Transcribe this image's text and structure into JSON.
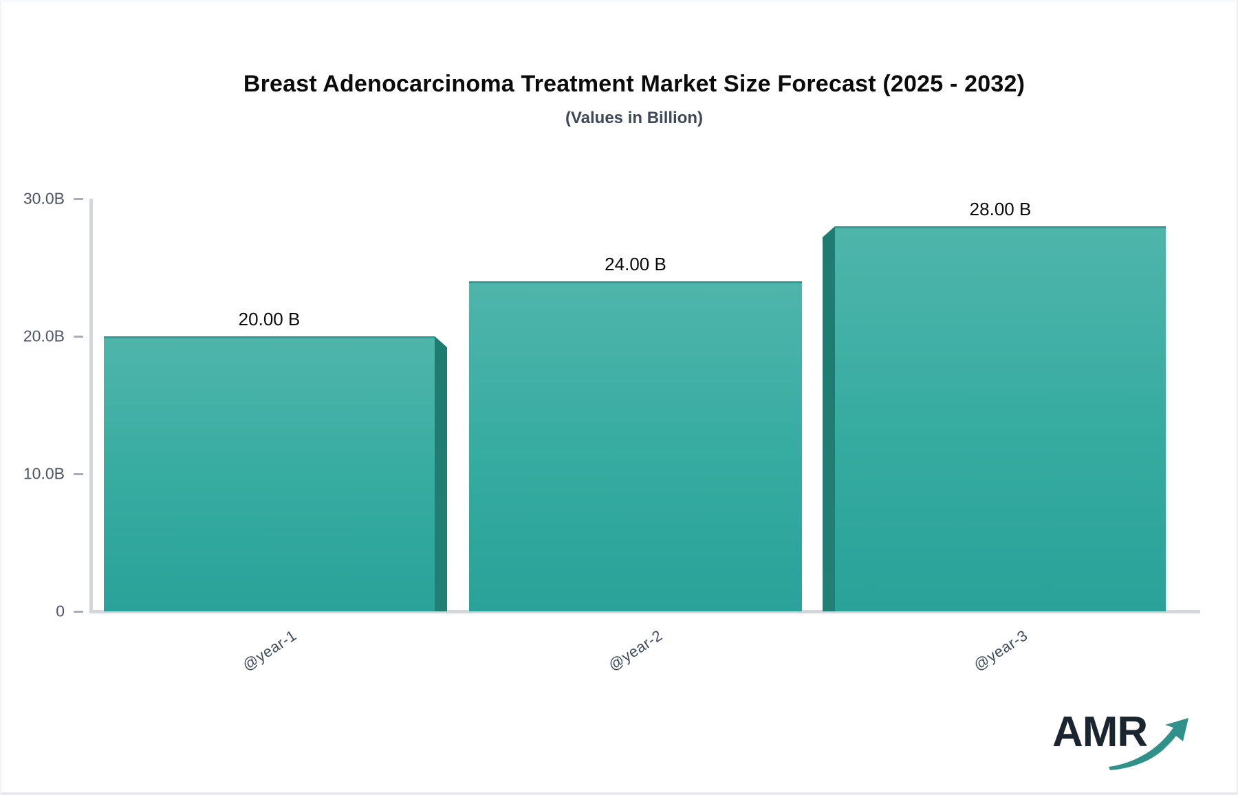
{
  "header": {
    "title": "Breast Adenocarcinoma Treatment Market Size Forecast (2025 - 2032)",
    "subtitle": "(Values in Billion)"
  },
  "chart_data": {
    "type": "bar",
    "title": "Breast Adenocarcinoma Treatment Market Size Forecast (2025 - 2032)",
    "subtitle": "(Values in Billion)",
    "categories": [
      "@year-1",
      "@year-2",
      "@year-3"
    ],
    "values": [
      20.0,
      24.0,
      28.0
    ],
    "value_labels": [
      "20.00 B",
      "24.00 B",
      "28.00 B"
    ],
    "xlabel": "",
    "ylabel": "",
    "ylim": [
      0,
      30
    ],
    "y_ticks": [
      {
        "value": 30,
        "label": "30.0B"
      },
      {
        "value": 20,
        "label": "20.0B"
      },
      {
        "value": 10,
        "label": "10.0B"
      },
      {
        "value": 0,
        "label": "0"
      }
    ],
    "grid": false,
    "legend_position": "none",
    "bar_color_top": "#4fb5ab",
    "bar_color_bottom": "#2aa299",
    "bar_top_edge_color": "#2f9e93",
    "bar_side_shade_color": "#1f7d73"
  },
  "logo": {
    "text": "AMR",
    "text_color": "#1a2530",
    "arrow_color": "#2f9189"
  },
  "colors": {
    "axis_line": "#d3d6dc",
    "tick_mark": "#a8adb6",
    "y_tick_label": "#4a5462",
    "x_category_label": "#3f4a5a",
    "value_label": "#0a0a0a",
    "title": "#0b0b0b",
    "subtitle": "#3e4856",
    "background": "#ffffff"
  }
}
